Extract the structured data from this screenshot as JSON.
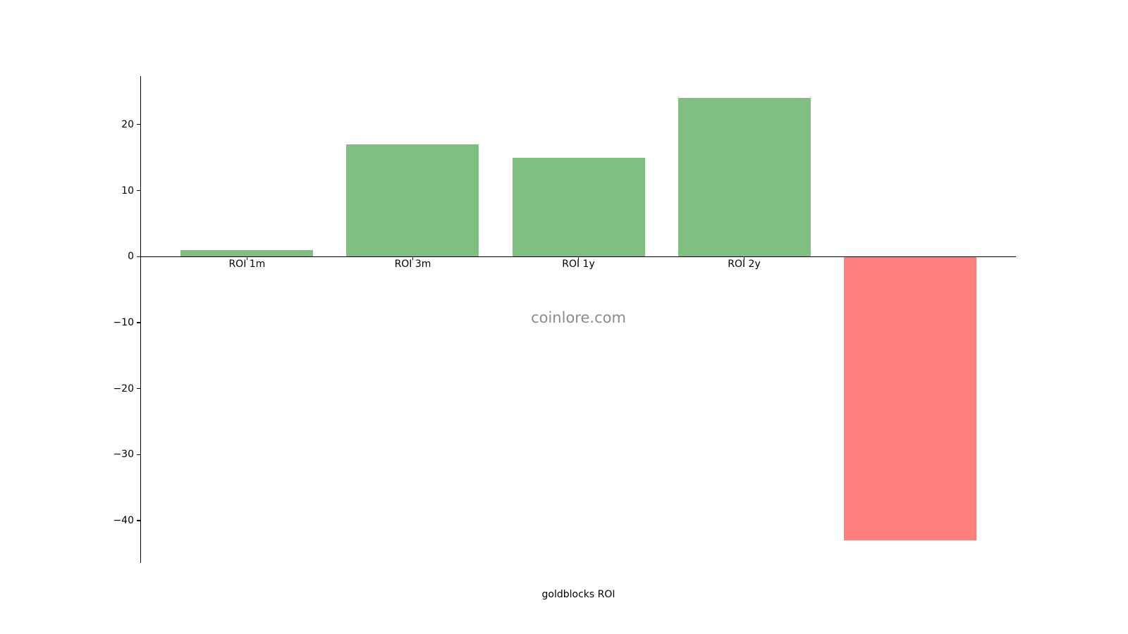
{
  "chart_data": {
    "type": "bar",
    "title": "",
    "xlabel": "goldblocks ROI",
    "ylabel": "",
    "categories": [
      "ROI 1m",
      "ROI 3m",
      "ROI 1y",
      "ROI 2y",
      ""
    ],
    "values": [
      1,
      17,
      15,
      24,
      -43
    ],
    "series": [
      {
        "name": "goldblocks ROI",
        "values": [
          1,
          17,
          15,
          24,
          -43
        ]
      }
    ],
    "positive_color": "#7fbf7f",
    "negative_color": "#ff7f7f",
    "bar_colors": [
      "#7fbf7f",
      "#7fbf7f",
      "#7fbf7f",
      "#7fbf7f",
      "#ff7f7f"
    ],
    "yticks": [
      {
        "value": 20,
        "label": "20"
      },
      {
        "value": 10,
        "label": "10"
      },
      {
        "value": 0,
        "label": "0"
      },
      {
        "value": -10,
        "label": "−10"
      },
      {
        "value": -20,
        "label": "−20"
      },
      {
        "value": -30,
        "label": "−30"
      },
      {
        "value": -40,
        "label": "−40"
      }
    ],
    "ylim": [
      -46.4,
      27.35
    ],
    "grid": false,
    "legend_position": "none",
    "axis_color": "#000000",
    "watermark": "coinlore.com",
    "watermark_color": "#8c8c8c"
  }
}
